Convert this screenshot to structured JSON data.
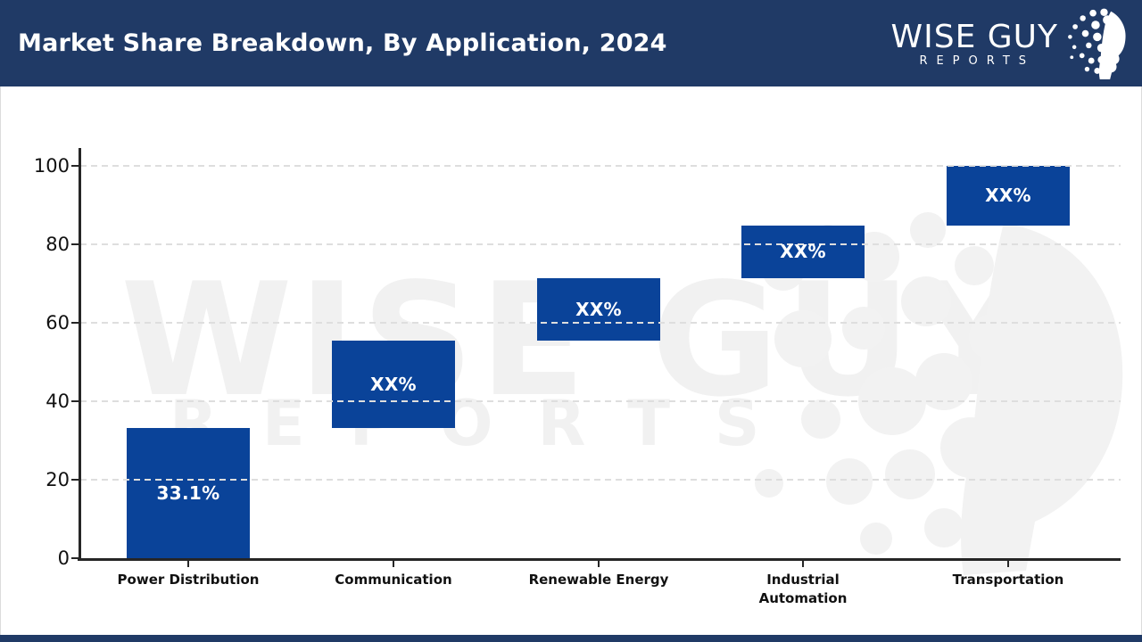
{
  "header": {
    "title": "Market Share Breakdown, By Application, 2024",
    "logo": {
      "wordmark": "WISE GUY",
      "subtext": "REPORTS",
      "face_icon": "dotted-face-profile"
    }
  },
  "watermark": {
    "line1": "WISE GUY",
    "line2": "REPORTS",
    "face_icon": "dotted-face-profile-watermark"
  },
  "chart_data": {
    "type": "bar",
    "subtype": "waterfall",
    "title": "Market Share Breakdown, By Application, 2024",
    "xlabel": "",
    "ylabel": "",
    "ylim": [
      0,
      100
    ],
    "yticks": [
      0,
      20,
      40,
      60,
      80,
      100
    ],
    "grid": "horizontal-dashed",
    "legend": "none",
    "bar_color": "#0a4399",
    "bar_label_color": "#ffffff",
    "categories": [
      "Power Distribution",
      "Communication",
      "Renewable Energy",
      "Industrial\nAutomation",
      "Transportation"
    ],
    "series": [
      {
        "name": "Market Share",
        "segments": [
          {
            "category": "Power Distribution",
            "start": 0,
            "end": 33.1,
            "label": "33.1%"
          },
          {
            "category": "Communication",
            "start": 33.1,
            "end": 55.5,
            "label": "XX%"
          },
          {
            "category": "Renewable Energy",
            "start": 55.5,
            "end": 71.4,
            "label": "XX%"
          },
          {
            "category": "Industrial Automation",
            "start": 71.4,
            "end": 84.8,
            "label": "XX%"
          },
          {
            "category": "Transportation",
            "start": 84.8,
            "end": 100,
            "label": "XX%"
          }
        ]
      }
    ]
  },
  "colors": {
    "header_bg": "#203a66",
    "footer_bg": "#203a66",
    "bar": "#0a4399",
    "gridline": "#dedede",
    "axis": "#262626",
    "watermark": "#f1f1f1"
  }
}
